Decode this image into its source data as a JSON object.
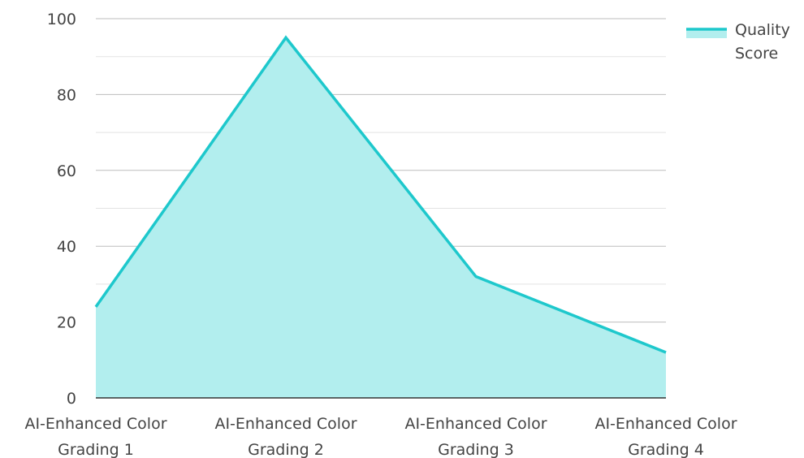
{
  "chart_data": {
    "type": "area",
    "categories": [
      [
        "AI-Enhanced Color",
        "Grading 1"
      ],
      [
        "AI-Enhanced Color",
        "Grading 2"
      ],
      [
        "AI-Enhanced Color",
        "Grading 3"
      ],
      [
        "AI-Enhanced Color",
        "Grading 4"
      ]
    ],
    "series": [
      {
        "name": "Quality Score",
        "values": [
          24,
          95,
          32,
          12
        ]
      }
    ],
    "legend": {
      "position": "top-right",
      "label_lines": [
        "Quality",
        "Score"
      ]
    },
    "ylim": [
      0,
      100
    ],
    "yticks": [
      0,
      20,
      40,
      60,
      80,
      100
    ],
    "grid": true,
    "colors": {
      "line": "#1ec8cc",
      "fill": "#b2eeee",
      "grid_major": "#bdbdbd",
      "grid_minor": "#e3e3e3",
      "axis": "#333333"
    }
  }
}
